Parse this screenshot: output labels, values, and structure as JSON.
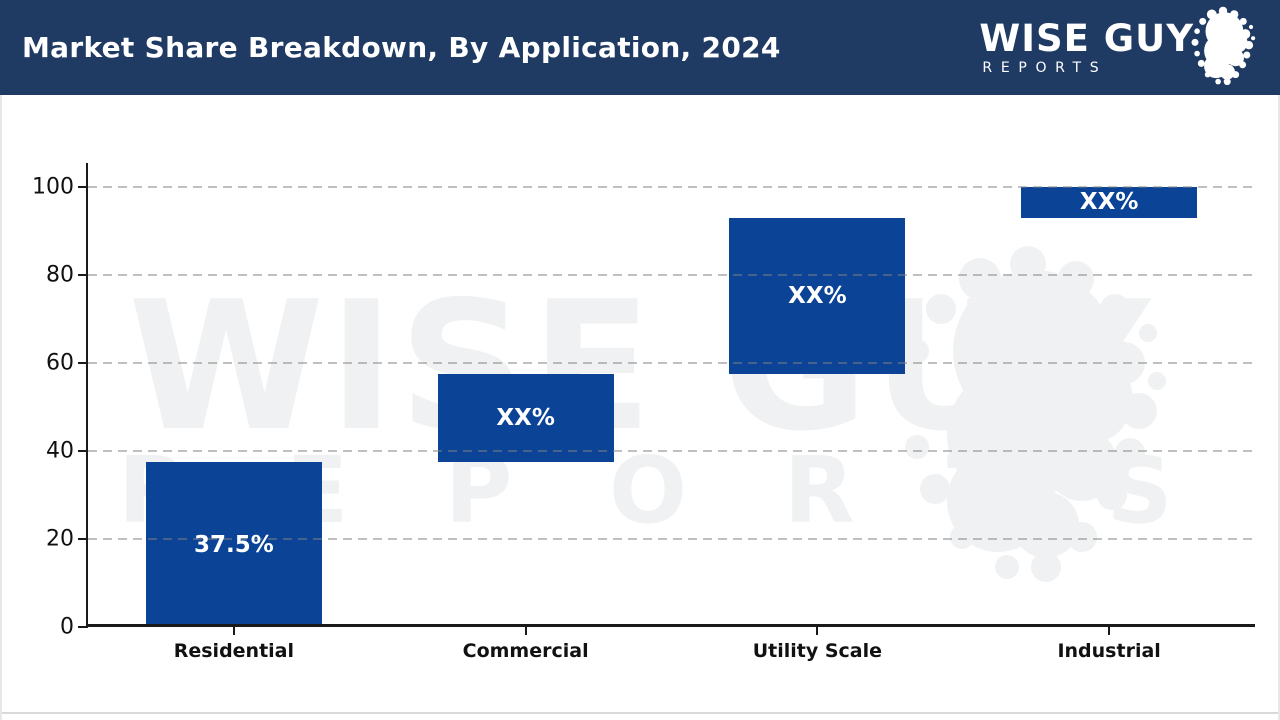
{
  "header": {
    "title": "Market Share Breakdown, By Application, 2024",
    "bg_color": "#1f3a63",
    "logo": {
      "wordmark": "WISE GUY",
      "subtext": "REPORTS"
    }
  },
  "watermark": {
    "line1": "WISE GUY",
    "line2": "REPORTS"
  },
  "chart_data": {
    "type": "bar",
    "subtype": "floating-waterfall",
    "title": "Market Share Breakdown, By Application, 2024",
    "categories": [
      "Residential",
      "Commercial",
      "Utility Scale",
      "Industrial"
    ],
    "segments": [
      {
        "category": "Residential",
        "start": 0,
        "end": 37.5,
        "label": "37.5%"
      },
      {
        "category": "Commercial",
        "start": 37.5,
        "end": 57.5,
        "label": "XX%"
      },
      {
        "category": "Utility Scale",
        "start": 57.5,
        "end": 93,
        "label": "XX%"
      },
      {
        "category": "Industrial",
        "start": 93,
        "end": 100,
        "label": "XX%"
      }
    ],
    "xlabel": "",
    "ylabel": "",
    "y_ticks": [
      0,
      20,
      40,
      60,
      80,
      100
    ],
    "ylim": [
      0,
      105
    ],
    "grid": "horizontal-dashed",
    "legend": "none",
    "bar_color": "#0b4397",
    "bar_label_color": "#ffffff",
    "axis_color": "#1a1a1a"
  }
}
